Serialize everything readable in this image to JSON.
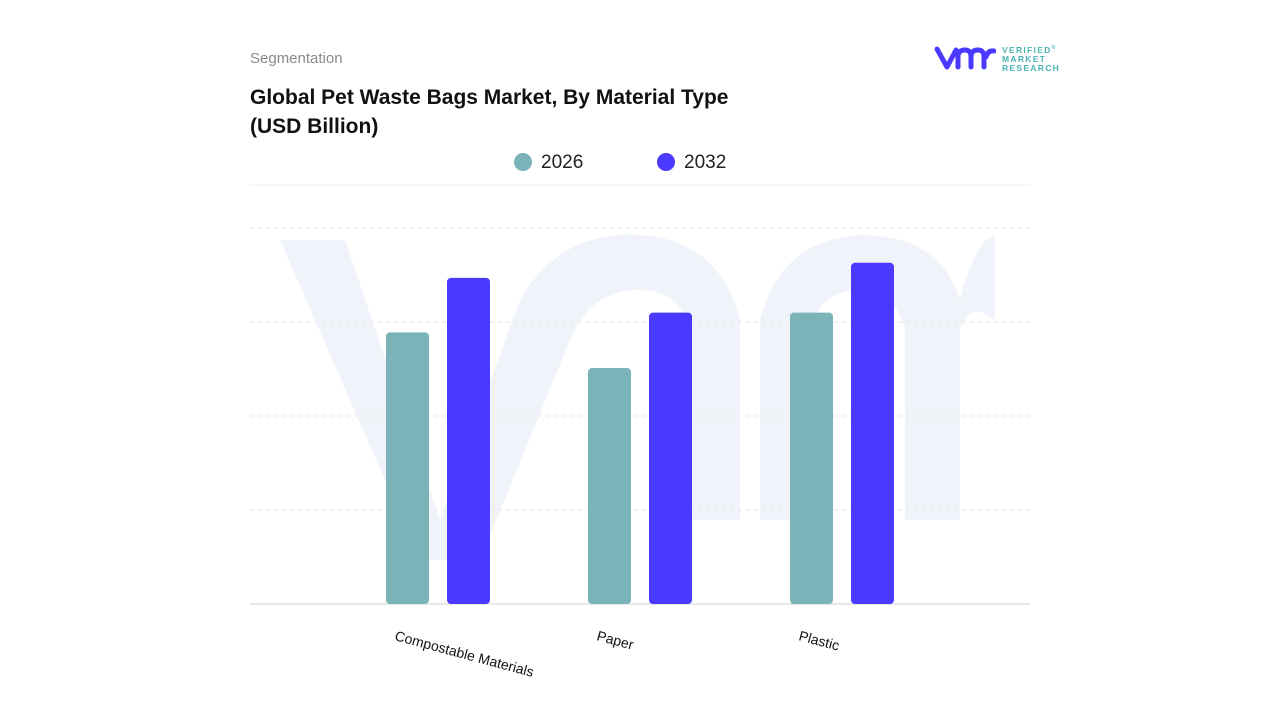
{
  "header": {
    "section": "Segmentation",
    "title": "Global Pet Waste Bags Market, By Material Type (USD Billion)"
  },
  "logo": {
    "text": [
      "VERIFIED",
      "MARKET",
      "RESEARCH"
    ],
    "mark": "vmr"
  },
  "colors": {
    "series_2026": "#7ab4b8",
    "series_2032": "#4a3aff",
    "grid": "#e6e6e6",
    "watermark": "#f1f3fb"
  },
  "chart_data": {
    "type": "bar",
    "title": "Global Pet Waste Bags Market, By Material Type (USD Billion)",
    "categories": [
      "Compostable Materials",
      "Paper",
      "Plastic"
    ],
    "series": [
      {
        "name": "2026",
        "values": [
          2.89,
          2.51,
          3.1
        ]
      },
      {
        "name": "2032",
        "values": [
          3.47,
          3.1,
          3.63
        ]
      }
    ],
    "ylim": [
      0,
      4
    ],
    "grid": true,
    "legend": "top-center",
    "xlabel": "",
    "ylabel": "",
    "note": "values estimated relative to gridlines; no y-axis tick labels shown"
  }
}
